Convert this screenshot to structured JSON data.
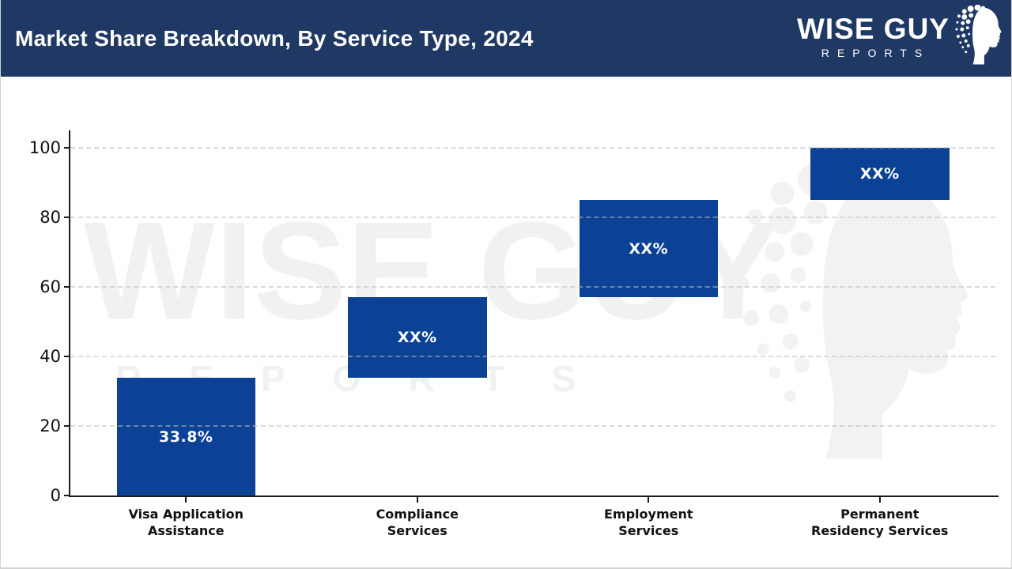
{
  "header": {
    "title": "Market Share Breakdown, By Service Type, 2024",
    "logo": {
      "line1": "WISE GUY",
      "line2": "REPORTS"
    }
  },
  "watermark": {
    "line1": "WISE GUY",
    "line2": "REPORTS"
  },
  "chart_data": {
    "type": "bar",
    "subtype": "waterfall",
    "title": "Market Share Breakdown, By Service Type, 2024",
    "xlabel": "",
    "ylabel": "",
    "ylim": [
      0,
      100
    ],
    "y_ticks": [
      0,
      20,
      40,
      60,
      80,
      100
    ],
    "grid": "horizontal-dashed",
    "legend": null,
    "categories": [
      "Visa Application Assistance",
      "Compliance Services",
      "Employment Services",
      "Permanent Residency Services"
    ],
    "category_lines": [
      [
        "Visa Application",
        "Assistance"
      ],
      [
        "Compliance",
        "Services"
      ],
      [
        "Employment",
        "Services"
      ],
      [
        "Permanent",
        "Residency Services"
      ]
    ],
    "segments": [
      {
        "category": "Visa Application Assistance",
        "start": 0,
        "end": 33.8,
        "label": "33.8%"
      },
      {
        "category": "Compliance Services",
        "start": 33.8,
        "end": 57,
        "label": "XX%"
      },
      {
        "category": "Employment Services",
        "start": 57,
        "end": 85,
        "label": "XX%"
      },
      {
        "category": "Permanent Residency Services",
        "start": 85,
        "end": 100,
        "label": "XX%"
      }
    ],
    "colors": {
      "bar": "#0b4296",
      "bar_label": "#ffffff",
      "header_bg": "#1f3864",
      "grid": "#dcdcdc",
      "axis": "#1a1a1a",
      "watermark": "#f1f1f1"
    }
  }
}
